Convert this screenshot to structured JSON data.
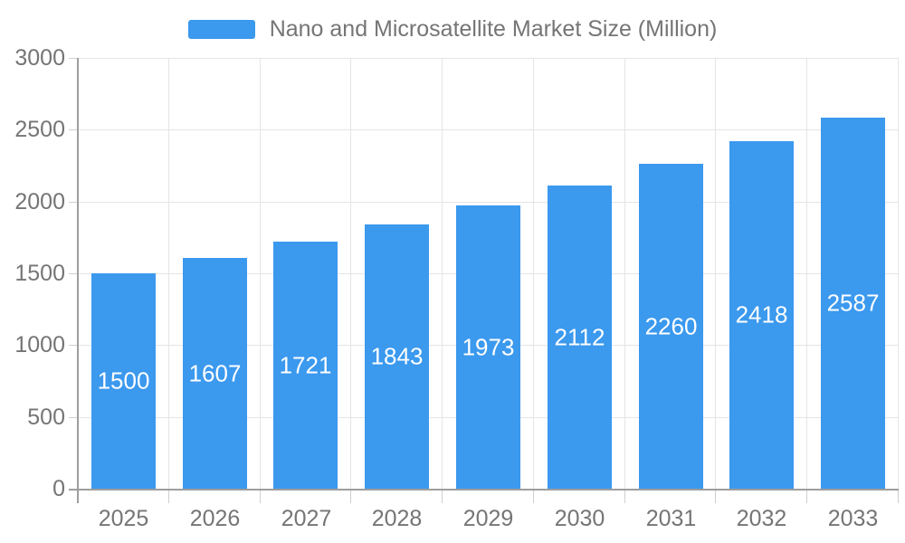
{
  "legend": {
    "label": "Nano and Microsatellite Market Size (Million)"
  },
  "chart_data": {
    "type": "bar",
    "title": "Nano and Microsatellite Market Size (Million)",
    "categories": [
      "2025",
      "2026",
      "2027",
      "2028",
      "2029",
      "2030",
      "2031",
      "2032",
      "2033"
    ],
    "values": [
      1500,
      1607,
      1721,
      1843,
      1973,
      2112,
      2260,
      2418,
      2587
    ],
    "xlabel": "",
    "ylabel": "",
    "ylim": [
      0,
      3000
    ],
    "yticks": [
      0,
      500,
      1000,
      1500,
      2000,
      2500,
      3000
    ],
    "grid": "on",
    "legend_position": "top-center",
    "bar_labels_shown": true,
    "bar_label_valign": "center-of-bar",
    "colors": {
      "bar": "#3B99EE",
      "bar_label": "#FFFFFF",
      "axis_line": "#9E9E9E",
      "gridline": "#E5E5E5",
      "tick": "#CFCFCF",
      "text": "#757575",
      "background": "#FFFFFF"
    }
  }
}
